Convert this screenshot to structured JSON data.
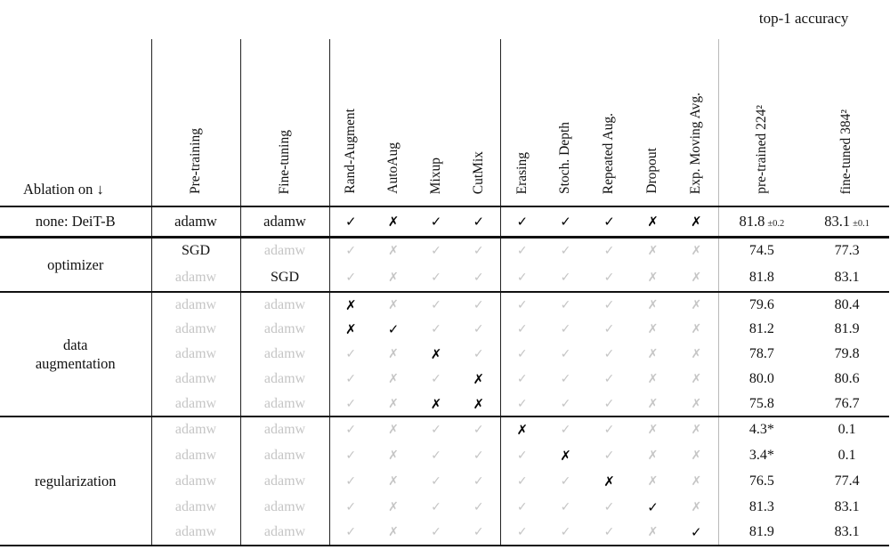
{
  "table": {
    "top_right_header": "top-1 accuracy",
    "corner_label": "Ablation on ↓",
    "mark_glyphs": {
      "check": "✓",
      "cross": "✗"
    },
    "columns": [
      {
        "label": "Pre-training"
      },
      {
        "label": "Fine-tuning"
      },
      {
        "label": "Rand-Augment"
      },
      {
        "label": "AutoAug"
      },
      {
        "label": "Mixup"
      },
      {
        "label": "CutMix"
      },
      {
        "label": "Erasing"
      },
      {
        "label": "Stoch. Depth"
      },
      {
        "label": "Repeated Aug."
      },
      {
        "label": "Dropout"
      },
      {
        "label": "Exp. Moving Avg."
      },
      {
        "label": "pre-trained 224²"
      },
      {
        "label": "fine-tuned 384²"
      }
    ],
    "groups": [
      {
        "label_lines": [
          "none: DeiT-B"
        ],
        "rows": [
          {
            "pre": "adamw",
            "pre_dim": false,
            "fine": "adamw",
            "fine_dim": false,
            "marks": [
              "check",
              "cross",
              "check",
              "check",
              "check",
              "check",
              "check",
              "cross",
              "cross"
            ],
            "acc224": "81.8",
            "acc224_pm": "±0.2",
            "acc384": "83.1",
            "acc384_pm": "±0.1"
          }
        ]
      },
      {
        "label_lines": [
          "optimizer"
        ],
        "rows": [
          {
            "pre": "SGD",
            "pre_dim": false,
            "fine": "adamw",
            "fine_dim": true,
            "marks": [
              "check_dim",
              "cross_dim",
              "check_dim",
              "check_dim",
              "check_dim",
              "check_dim",
              "check_dim",
              "cross_dim",
              "cross_dim"
            ],
            "acc224": "74.5",
            "acc384": "77.3"
          },
          {
            "pre": "adamw",
            "pre_dim": true,
            "fine": "SGD",
            "fine_dim": false,
            "marks": [
              "check_dim",
              "cross_dim",
              "check_dim",
              "check_dim",
              "check_dim",
              "check_dim",
              "check_dim",
              "cross_dim",
              "cross_dim"
            ],
            "acc224": "81.8",
            "acc384": "83.1"
          }
        ]
      },
      {
        "label_lines": [
          "data",
          "augmentation"
        ],
        "rows": [
          {
            "pre": "adamw",
            "pre_dim": true,
            "fine": "adamw",
            "fine_dim": true,
            "marks": [
              "cross",
              "cross_dim",
              "check_dim",
              "check_dim",
              "check_dim",
              "check_dim",
              "check_dim",
              "cross_dim",
              "cross_dim"
            ],
            "acc224": "79.6",
            "acc384": "80.4"
          },
          {
            "pre": "adamw",
            "pre_dim": true,
            "fine": "adamw",
            "fine_dim": true,
            "marks": [
              "cross",
              "check",
              "check_dim",
              "check_dim",
              "check_dim",
              "check_dim",
              "check_dim",
              "cross_dim",
              "cross_dim"
            ],
            "acc224": "81.2",
            "acc384": "81.9"
          },
          {
            "pre": "adamw",
            "pre_dim": true,
            "fine": "adamw",
            "fine_dim": true,
            "marks": [
              "check_dim",
              "cross_dim",
              "cross",
              "check_dim",
              "check_dim",
              "check_dim",
              "check_dim",
              "cross_dim",
              "cross_dim"
            ],
            "acc224": "78.7",
            "acc384": "79.8"
          },
          {
            "pre": "adamw",
            "pre_dim": true,
            "fine": "adamw",
            "fine_dim": true,
            "marks": [
              "check_dim",
              "cross_dim",
              "check_dim",
              "cross",
              "check_dim",
              "check_dim",
              "check_dim",
              "cross_dim",
              "cross_dim"
            ],
            "acc224": "80.0",
            "acc384": "80.6"
          },
          {
            "pre": "adamw",
            "pre_dim": true,
            "fine": "adamw",
            "fine_dim": true,
            "marks": [
              "check_dim",
              "cross_dim",
              "cross",
              "cross",
              "check_dim",
              "check_dim",
              "check_dim",
              "cross_dim",
              "cross_dim"
            ],
            "acc224": "75.8",
            "acc384": "76.7"
          }
        ]
      },
      {
        "label_lines": [
          "regularization"
        ],
        "rows": [
          {
            "pre": "adamw",
            "pre_dim": true,
            "fine": "adamw",
            "fine_dim": true,
            "marks": [
              "check_dim",
              "cross_dim",
              "check_dim",
              "check_dim",
              "cross",
              "check_dim",
              "check_dim",
              "cross_dim",
              "cross_dim"
            ],
            "acc224": "4.3*",
            "acc384": "0.1"
          },
          {
            "pre": "adamw",
            "pre_dim": true,
            "fine": "adamw",
            "fine_dim": true,
            "marks": [
              "check_dim",
              "cross_dim",
              "check_dim",
              "check_dim",
              "check_dim",
              "cross",
              "check_dim",
              "cross_dim",
              "cross_dim"
            ],
            "acc224": "3.4*",
            "acc384": "0.1"
          },
          {
            "pre": "adamw",
            "pre_dim": true,
            "fine": "adamw",
            "fine_dim": true,
            "marks": [
              "check_dim",
              "cross_dim",
              "check_dim",
              "check_dim",
              "check_dim",
              "check_dim",
              "cross",
              "cross_dim",
              "cross_dim"
            ],
            "acc224": "76.5",
            "acc384": "77.4"
          },
          {
            "pre": "adamw",
            "pre_dim": true,
            "fine": "adamw",
            "fine_dim": true,
            "marks": [
              "check_dim",
              "cross_dim",
              "check_dim",
              "check_dim",
              "check_dim",
              "check_dim",
              "check_dim",
              "check",
              "cross_dim"
            ],
            "acc224": "81.3",
            "acc384": "83.1"
          },
          {
            "pre": "adamw",
            "pre_dim": true,
            "fine": "adamw",
            "fine_dim": true,
            "marks": [
              "check_dim",
              "cross_dim",
              "check_dim",
              "check_dim",
              "check_dim",
              "check_dim",
              "check_dim",
              "cross_dim",
              "check"
            ],
            "acc224": "81.9",
            "acc384": "83.1"
          }
        ]
      }
    ]
  }
}
